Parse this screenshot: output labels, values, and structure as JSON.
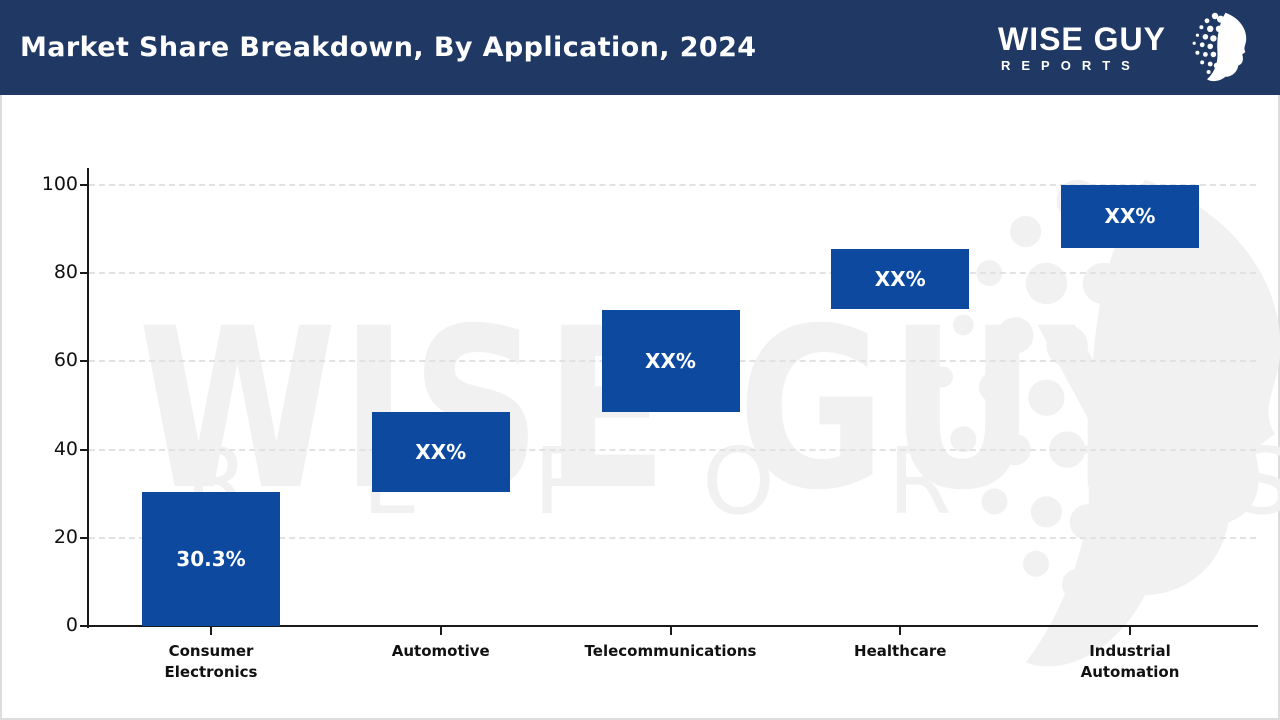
{
  "header": {
    "title": "Market Share Breakdown, By Application, 2024",
    "logo": {
      "brand": "WISE GUY",
      "sub": "REPORTS"
    }
  },
  "watermark": {
    "line1": "WISE GUY",
    "line2": "R E P O R T S"
  },
  "chart_data": {
    "type": "bar",
    "subtype": "waterfall",
    "title": "Market Share Breakdown, By Application, 2024",
    "categories": [
      "Consumer Electronics",
      "Automotive",
      "Telecommunications",
      "Healthcare",
      "Industrial Automation"
    ],
    "x_tick_labels": [
      "Consumer\nElectronics",
      "Automotive",
      "Telecommunications",
      "Healthcare",
      "Industrial\nAutomation"
    ],
    "segments": [
      {
        "category": "Consumer Electronics",
        "start": 0,
        "end": 30.3,
        "label": "30.3%"
      },
      {
        "category": "Automotive",
        "start": 30.3,
        "end": 48.6,
        "label": "XX%"
      },
      {
        "category": "Telecommunications",
        "start": 48.6,
        "end": 71.6,
        "label": "XX%"
      },
      {
        "category": "Healthcare",
        "start": 71.9,
        "end": 85.6,
        "label": "XX%"
      },
      {
        "category": "Industrial Automation",
        "start": 85.8,
        "end": 100,
        "label": "XX%"
      }
    ],
    "y_ticks": [
      0,
      20,
      40,
      60,
      80,
      100
    ],
    "ylim": [
      0,
      104
    ],
    "grid": {
      "horizontal": true,
      "style": "dashed"
    },
    "legend_visible": false
  },
  "theme": {
    "header_bg": "#1f3864",
    "header_text": "#ffffff",
    "page_bg": "#ffffff",
    "bar_color": "#0d4a9f",
    "bar_label_color": "#ffffff",
    "axis_color": "#1a1a1a",
    "grid_color": "#e2e2e2",
    "watermark_color": "#f1f1f1",
    "border_color": "#dcdcdc"
  }
}
